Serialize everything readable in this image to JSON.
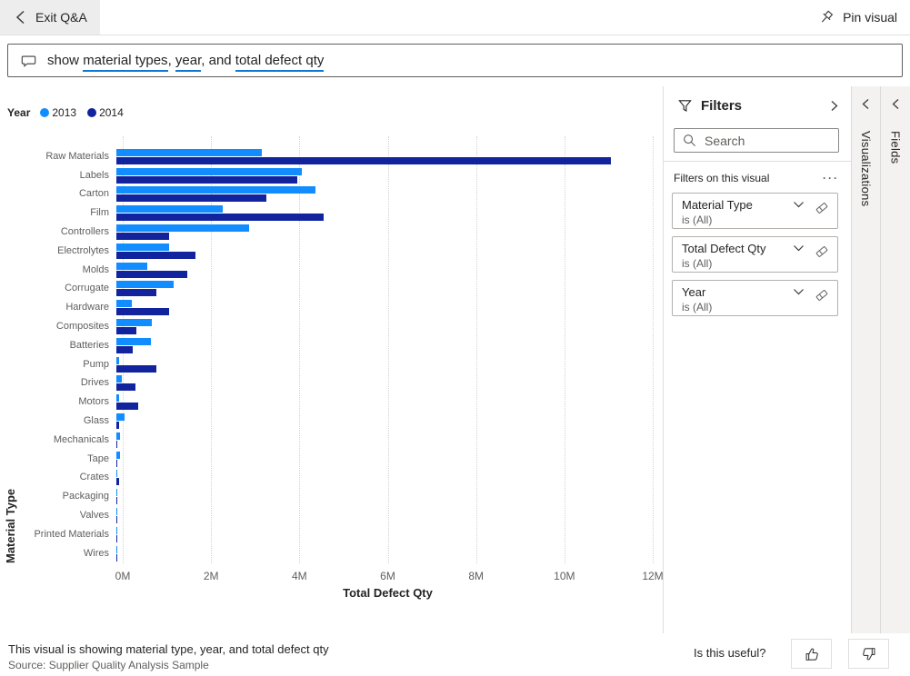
{
  "topbar": {
    "exit_label": "Exit Q&A",
    "pin_label": "Pin visual"
  },
  "question": {
    "segments": [
      {
        "text": "show ",
        "underline": false
      },
      {
        "text": "material types",
        "underline": true
      },
      {
        "text": ", ",
        "underline": false
      },
      {
        "text": "year",
        "underline": true
      },
      {
        "text": ", and ",
        "underline": false
      },
      {
        "text": "total defect qty",
        "underline": true
      }
    ]
  },
  "filters_pane": {
    "title": "Filters",
    "search_placeholder": "Search",
    "section_label": "Filters on this visual",
    "more_options_glyph": "···",
    "cards": [
      {
        "field": "Material Type",
        "condition": "is (All)"
      },
      {
        "field": "Total Defect Qty",
        "condition": "is (All)"
      },
      {
        "field": "Year",
        "condition": "is (All)"
      }
    ]
  },
  "right_panes": {
    "visualizations_label": "Visualizations",
    "fields_label": "Fields"
  },
  "footer": {
    "description": "This visual is showing material type, year, and total defect qty",
    "source": "Source: Supplier Quality Analysis Sample",
    "useful_prompt": "Is this useful?"
  },
  "chart_data": {
    "type": "bar",
    "orientation": "horizontal",
    "xlabel": "Total Defect Qty",
    "ylabel": "Material Type",
    "legend_title": "Year",
    "x_unit": "millions",
    "xlim_M": [
      0,
      12
    ],
    "xticks": [
      "0M",
      "2M",
      "4M",
      "6M",
      "8M",
      "10M",
      "12M"
    ],
    "grid": "vertical-dotted",
    "legend_position": "top-left",
    "categories": [
      "Raw Materials",
      "Labels",
      "Carton",
      "Film",
      "Controllers",
      "Electrolytes",
      "Molds",
      "Corrugate",
      "Hardware",
      "Composites",
      "Batteries",
      "Pump",
      "Drives",
      "Motors",
      "Glass",
      "Mechanicals",
      "Tape",
      "Crates",
      "Packaging",
      "Valves",
      "Printed Materials",
      "Wires"
    ],
    "series": [
      {
        "name": "2013",
        "color": "#118DFF",
        "values_M": [
          3.3,
          4.2,
          4.5,
          2.4,
          3.0,
          1.2,
          0.7,
          1.3,
          0.35,
          0.8,
          0.78,
          0.06,
          0.13,
          0.06,
          0.18,
          0.09,
          0.08,
          0.01,
          0.02,
          0.03,
          0.01,
          0.01
        ]
      },
      {
        "name": "2014",
        "color": "#12239E",
        "values_M": [
          11.2,
          4.1,
          3.4,
          4.7,
          1.2,
          1.8,
          1.6,
          0.9,
          1.2,
          0.45,
          0.37,
          0.9,
          0.43,
          0.5,
          0.06,
          0.02,
          0.02,
          0.06,
          0.02,
          0.01,
          0.03,
          0.01
        ]
      }
    ]
  },
  "colors": {
    "accent_blue": "#118DFF",
    "dark_blue": "#12239E",
    "underline_blue": "#0F78D4",
    "text_primary": "#252423",
    "text_secondary": "#605e5c"
  }
}
